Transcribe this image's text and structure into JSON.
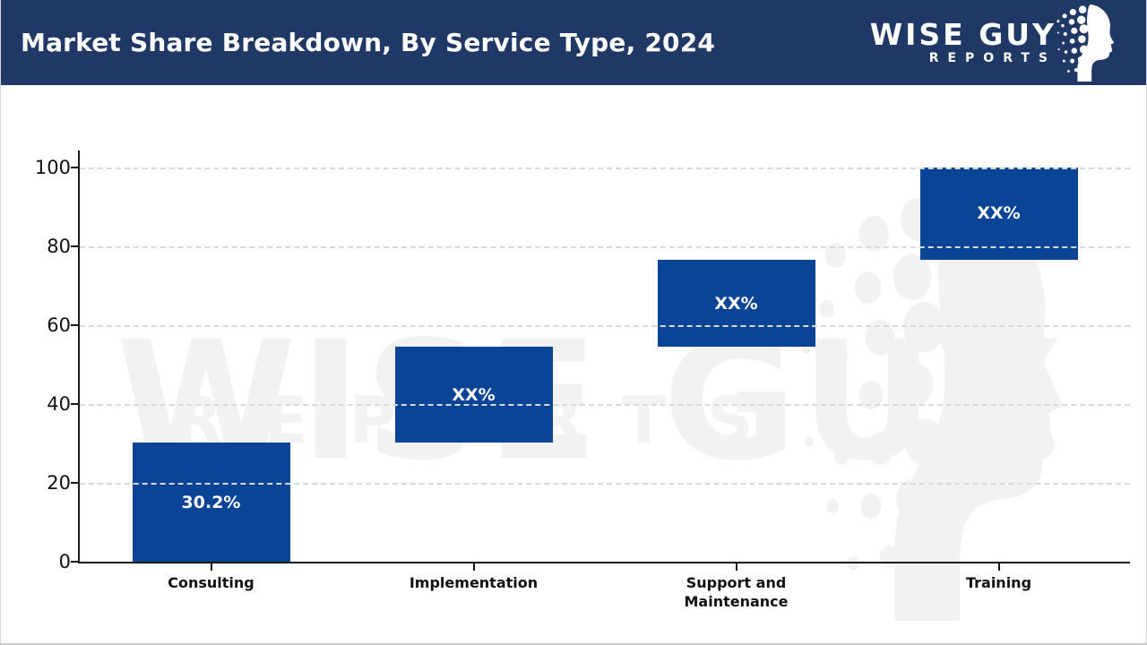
{
  "header": {
    "title": "Market Share Breakdown, By Service Type, 2024",
    "bg_color": "#203866",
    "logo": {
      "wordmark": "WISE GUY",
      "subtitle": "REPORTS"
    }
  },
  "watermark": {
    "wordmark": "WISE GUY",
    "subtitle": "REPORTS"
  },
  "chart_data": {
    "type": "bar",
    "variant": "waterfall",
    "title": "Market Share Breakdown, By Service Type, 2024",
    "categories": [
      "Consulting",
      "Implementation",
      "Support and Maintenance",
      "Training"
    ],
    "segments": [
      {
        "category": "Consulting",
        "start": 0,
        "end": 30.2,
        "label": "30.2%"
      },
      {
        "category": "Implementation",
        "start": 30.2,
        "end": 54.5,
        "label": "XX%"
      },
      {
        "category": "Support and Maintenance",
        "start": 54.5,
        "end": 76.6,
        "label": "XX%"
      },
      {
        "category": "Training",
        "start": 76.6,
        "end": 100,
        "label": "XX%"
      }
    ],
    "xlabel": "",
    "ylabel": "",
    "ylim": [
      0,
      100
    ],
    "yticks": [
      0,
      20,
      40,
      60,
      80,
      100
    ],
    "grid": {
      "horizontal": true,
      "style": "dashed"
    },
    "legend": "none",
    "bar_color": "#0a4496",
    "bar_label_color": "#ffffff",
    "axis_color": "#1a1a1a",
    "gridline_color": "#d9d9d9",
    "watermark_color": "#f2f2f2"
  }
}
